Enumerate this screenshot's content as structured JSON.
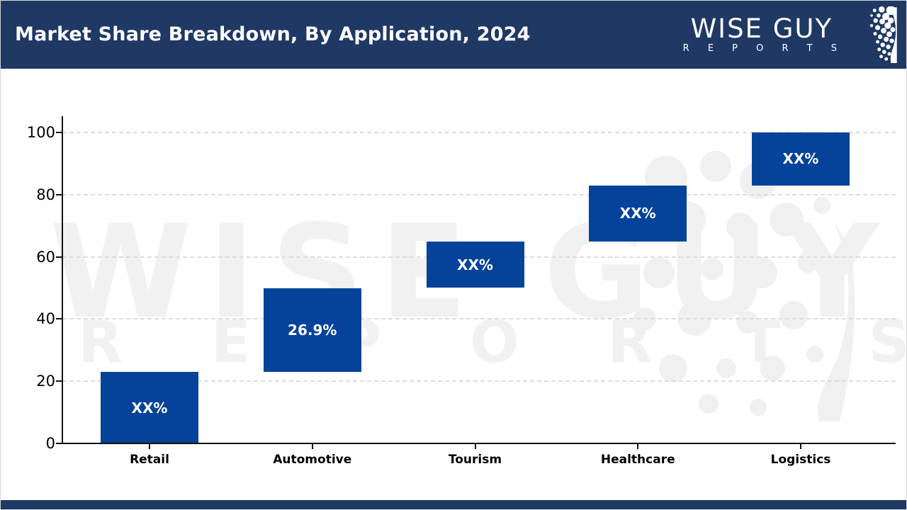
{
  "header": {
    "title": "Market Share Breakdown, By Application, 2024",
    "bg_color": "#1f3864",
    "logo": {
      "line1": "WISE GUY",
      "line2": "REPORTS"
    }
  },
  "watermark": {
    "line1": "WISE GUY",
    "line2": "REPORTS"
  },
  "chart_data": {
    "type": "bar",
    "subtype": "waterfall-floating-bars",
    "title": "Market Share Breakdown, By Application, 2024",
    "categories": [
      "Retail",
      "Automotive",
      "Tourism",
      "Healthcare",
      "Logistics"
    ],
    "bars": [
      {
        "category": "Retail",
        "start": 0,
        "end": 23,
        "height": 23,
        "label": "XX%"
      },
      {
        "category": "Automotive",
        "start": 23,
        "end": 50,
        "height": 26.9,
        "label": "26.9%"
      },
      {
        "category": "Tourism",
        "start": 50,
        "end": 65,
        "height": 15,
        "label": "XX%"
      },
      {
        "category": "Healthcare",
        "start": 65,
        "end": 83,
        "height": 18,
        "label": "XX%"
      },
      {
        "category": "Logistics",
        "start": 83,
        "end": 100,
        "height": 17,
        "label": "XX%"
      }
    ],
    "xlabel": "",
    "ylabel": "",
    "ylim": [
      0,
      100
    ],
    "yticks": [
      0,
      20,
      40,
      60,
      80,
      100
    ],
    "grid": "horizontal-dashed",
    "legend": "none",
    "bar_color": "#05429a",
    "bar_label_color": "#ffffff",
    "grid_color": "#dcdcdc",
    "axis_color": "#111111",
    "watermark_color": "#f1f1f1"
  },
  "footer": {
    "bg_color": "#1f3864"
  }
}
